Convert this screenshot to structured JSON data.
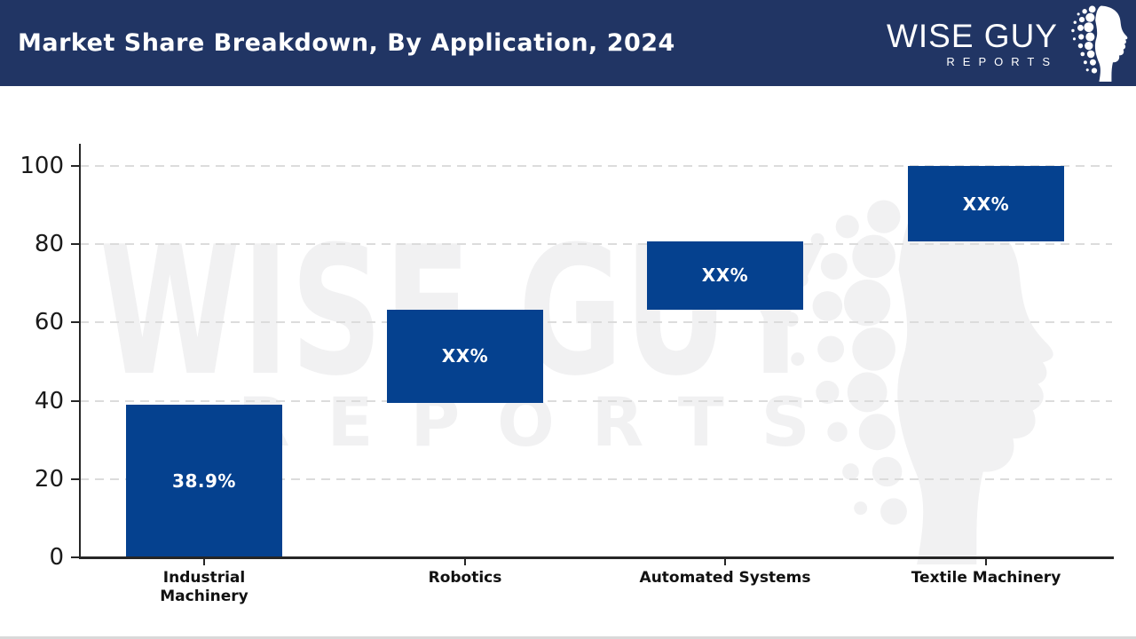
{
  "header": {
    "title": "Market Share Breakdown, By Application, 2024",
    "logo": {
      "name": "WISE GUY",
      "sub": "REPORTS"
    }
  },
  "watermark": {
    "line1": "WISE GUY",
    "line2": "REPORTS"
  },
  "chart_data": {
    "type": "bar",
    "subtype": "waterfall",
    "title": "Market Share Breakdown, By Application, 2024",
    "xlabel": "",
    "ylabel": "",
    "ylim": [
      0,
      105
    ],
    "yticks": [
      0,
      20,
      40,
      60,
      80,
      100
    ],
    "grid": "horizontal-dashed",
    "legend": "none",
    "bar_color": "#05418f",
    "categories": [
      "Industrial\nMachinery",
      "Robotics",
      "Automated Systems",
      "Textile Machinery"
    ],
    "segments": [
      {
        "category": "Industrial\nMachinery",
        "start": 0,
        "end": 39,
        "value_label": "38.9%"
      },
      {
        "category": "Robotics",
        "start": 39.5,
        "end": 63.3,
        "value_label": "XX%"
      },
      {
        "category": "Automated Systems",
        "start": 63.3,
        "end": 80.7,
        "value_label": "XX%"
      },
      {
        "category": "Textile Machinery",
        "start": 80.7,
        "end": 100,
        "value_label": "XX%"
      }
    ]
  },
  "colors": {
    "header_bg": "#213564",
    "bar": "#05418f",
    "bar_label": "#ffffff",
    "axis": "#262626",
    "tick_label": "#1a1a1a",
    "grid": "#dcdcdc",
    "watermark": "#f1f1f2",
    "page_bg": "#ffffff"
  }
}
